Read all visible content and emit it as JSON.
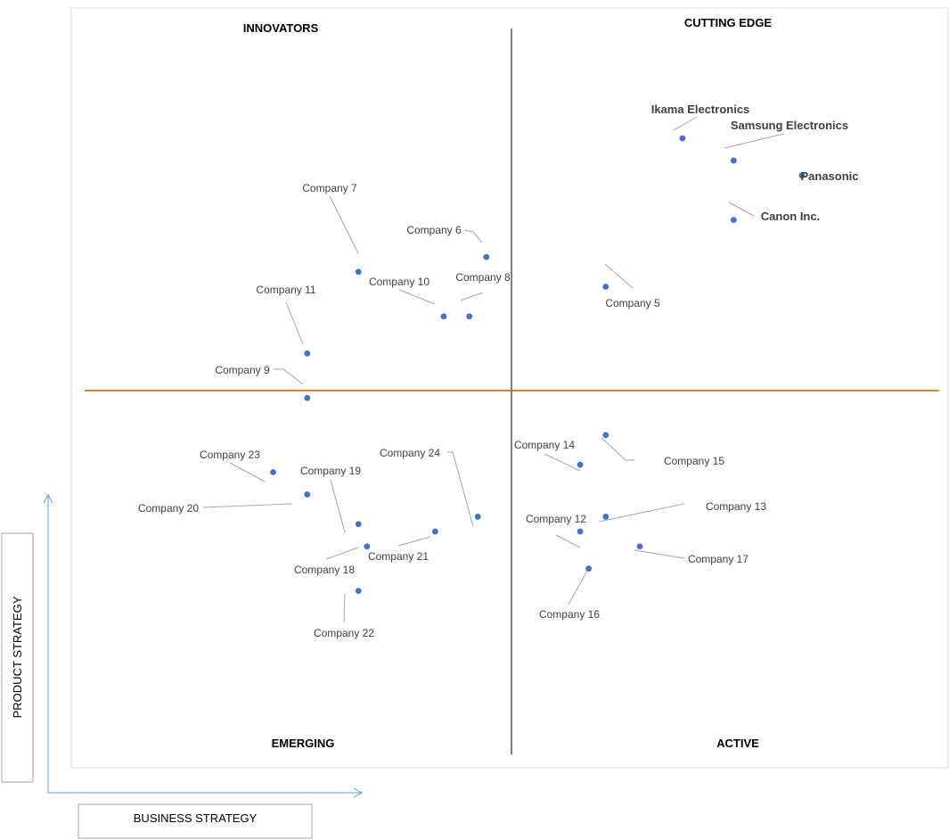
{
  "chart_data": {
    "type": "scatter",
    "title": "",
    "xlabel": "BUSINESS STRATEGY",
    "ylabel": "PRODUCT STRATEGY",
    "xlim": [
      0,
      10
    ],
    "ylim": [
      0,
      10
    ],
    "grid": false,
    "quadrants": {
      "top_left": "INNOVATORS",
      "top_right": "CUTTING EDGE",
      "bottom_left": "EMERGING",
      "bottom_right": "ACTIVE"
    },
    "colors": {
      "point": "#4472C4",
      "horizontal_divider": "#ED7D31",
      "vertical_divider": "#7F7F7F",
      "leader_line": "#A6A6A6",
      "axis_arrow": "#5B9BD5",
      "frame": "#D9D9D9"
    },
    "points": [
      {
        "name": "Ikama Electronics",
        "x": 7.0,
        "y": 8.4,
        "major": true
      },
      {
        "name": "Samsung Electronics",
        "x": 7.6,
        "y": 8.1,
        "major": true
      },
      {
        "name": "Panasonic",
        "x": 8.4,
        "y": 7.9,
        "major": true
      },
      {
        "name": "Canon Inc.",
        "x": 7.6,
        "y": 7.3,
        "major": true
      },
      {
        "name": "Company 5",
        "x": 6.1,
        "y": 6.4
      },
      {
        "name": "Company 6",
        "x": 4.7,
        "y": 6.8
      },
      {
        "name": "Company 7",
        "x": 3.2,
        "y": 6.6
      },
      {
        "name": "Company 8",
        "x": 4.5,
        "y": 6.0
      },
      {
        "name": "Company 10",
        "x": 4.2,
        "y": 6.0
      },
      {
        "name": "Company 11",
        "x": 2.6,
        "y": 5.5
      },
      {
        "name": "Company 9",
        "x": 2.6,
        "y": 4.9
      },
      {
        "name": "Company 14",
        "x": 5.8,
        "y": 4.0
      },
      {
        "name": "Company 15",
        "x": 6.1,
        "y": 4.4
      },
      {
        "name": "Company 23",
        "x": 2.2,
        "y": 3.9
      },
      {
        "name": "Company 20",
        "x": 2.6,
        "y": 3.6
      },
      {
        "name": "Company 19",
        "x": 3.2,
        "y": 3.2
      },
      {
        "name": "Company 24",
        "x": 4.6,
        "y": 3.3
      },
      {
        "name": "Company 13",
        "x": 6.1,
        "y": 3.3
      },
      {
        "name": "Company 12",
        "x": 5.8,
        "y": 3.1
      },
      {
        "name": "Company 21",
        "x": 4.1,
        "y": 3.1
      },
      {
        "name": "Company 18",
        "x": 3.3,
        "y": 2.9
      },
      {
        "name": "Company 17",
        "x": 6.5,
        "y": 2.9
      },
      {
        "name": "Company 16",
        "x": 5.9,
        "y": 2.6
      },
      {
        "name": "Company 22",
        "x": 3.2,
        "y": 2.3
      }
    ]
  }
}
